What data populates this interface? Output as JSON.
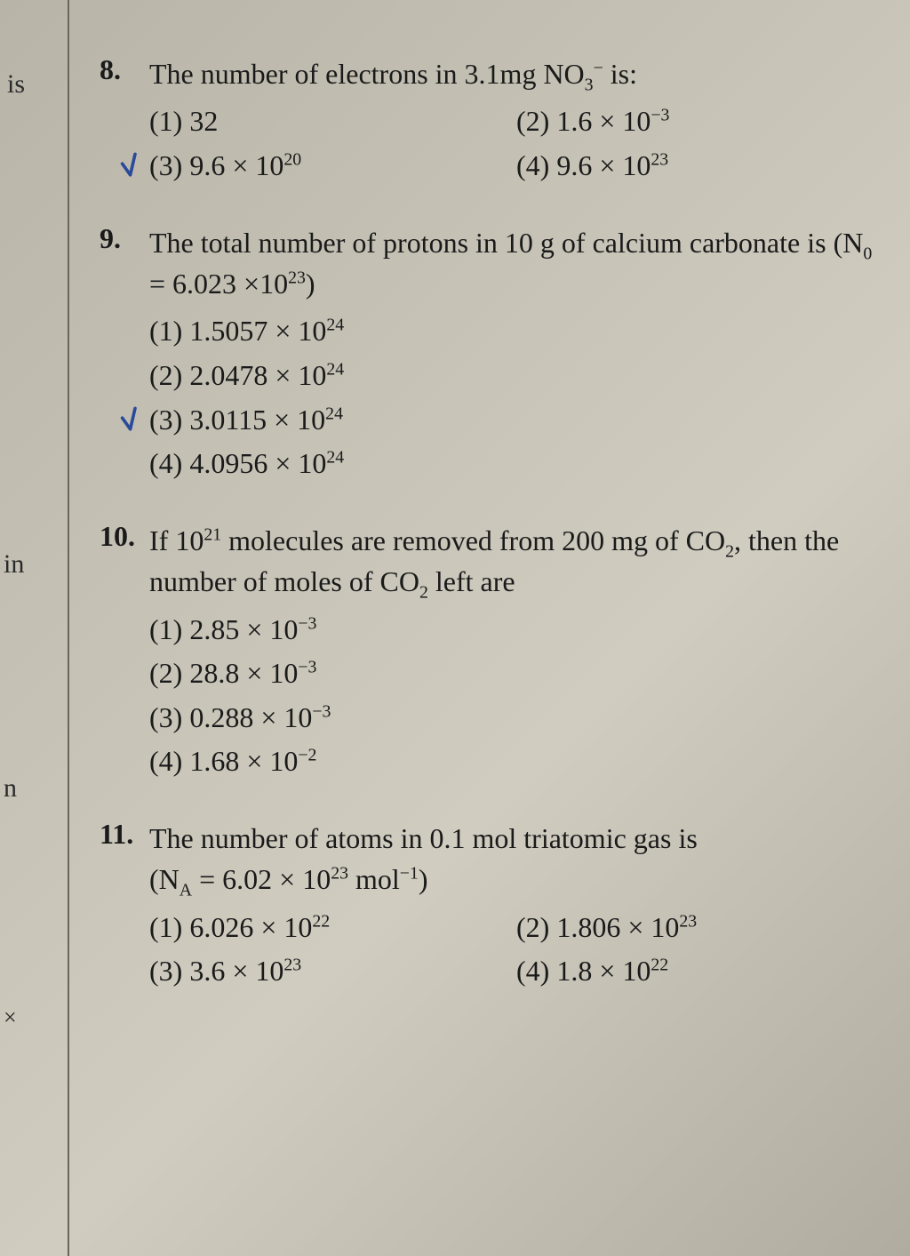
{
  "background_gradient": [
    "#b8b4a8",
    "#c4c0b4",
    "#d0ccc0",
    "#b0aca0"
  ],
  "text_color": "#1a1a1a",
  "checkmark_color": "#2a4a9a",
  "vline_color": "#6a665a",
  "font_family": "Times New Roman",
  "margin_labels": {
    "is": "is",
    "in": "in",
    "n": "n",
    "x": "×"
  },
  "questions": [
    {
      "number": "8.",
      "text_html": "The number of electrons in 3.1mg  NO<sub>3</sub><sup>−</sup> is:",
      "layout": "2col",
      "checked_option_index": 2,
      "options": [
        {
          "label": "(1)",
          "value_html": "32"
        },
        {
          "label": "(2)",
          "value_html": "1.6 × 10<sup>−3</sup>"
        },
        {
          "label": "(3)",
          "value_html": "9.6 × 10<sup>20</sup>"
        },
        {
          "label": "(4)",
          "value_html": "9.6 × 10<sup>23</sup>"
        }
      ]
    },
    {
      "number": "9.",
      "text_html": "The total number of protons in 10 g of calcium carbonate is (N<sub>0</sub> = 6.023 ×10<sup>23</sup>)",
      "layout": "1col",
      "checked_option_index": 2,
      "options": [
        {
          "label": "(1)",
          "value_html": "1.5057 × 10<sup>24</sup>"
        },
        {
          "label": "(2)",
          "value_html": "2.0478 × 10<sup>24</sup>"
        },
        {
          "label": "(3)",
          "value_html": "3.0115 × 10<sup>24</sup>"
        },
        {
          "label": "(4)",
          "value_html": "4.0956 × 10<sup>24</sup>"
        }
      ]
    },
    {
      "number": "10.",
      "text_html": "If 10<sup>21</sup> molecules are removed from 200 mg of CO<sub>2</sub>, then the number of moles of CO<sub>2</sub> left are",
      "layout": "1col",
      "checked_option_index": -1,
      "options": [
        {
          "label": "(1)",
          "value_html": "2.85 × 10<sup>−3</sup>"
        },
        {
          "label": "(2)",
          "value_html": "28.8 × 10<sup>−3</sup>"
        },
        {
          "label": "(3)",
          "value_html": "0.288 × 10<sup>−3</sup>"
        },
        {
          "label": "(4)",
          "value_html": "1.68 × 10<sup>−2</sup>"
        }
      ]
    },
    {
      "number": "11.",
      "text_html": "The number of atoms in 0.1 mol triatomic gas is<br>(N<sub>A</sub> = 6.02 × 10<sup>23</sup> mol<sup>−1</sup>)",
      "layout": "2col",
      "checked_option_index": -1,
      "options": [
        {
          "label": "(1)",
          "value_html": "6.026 × 10<sup>22</sup>"
        },
        {
          "label": "(2)",
          "value_html": "1.806 × 10<sup>23</sup>"
        },
        {
          "label": "(3)",
          "value_html": "3.6 × 10<sup>23</sup>"
        },
        {
          "label": "(4)",
          "value_html": "1.8 × 10<sup>22</sup>"
        }
      ]
    }
  ]
}
